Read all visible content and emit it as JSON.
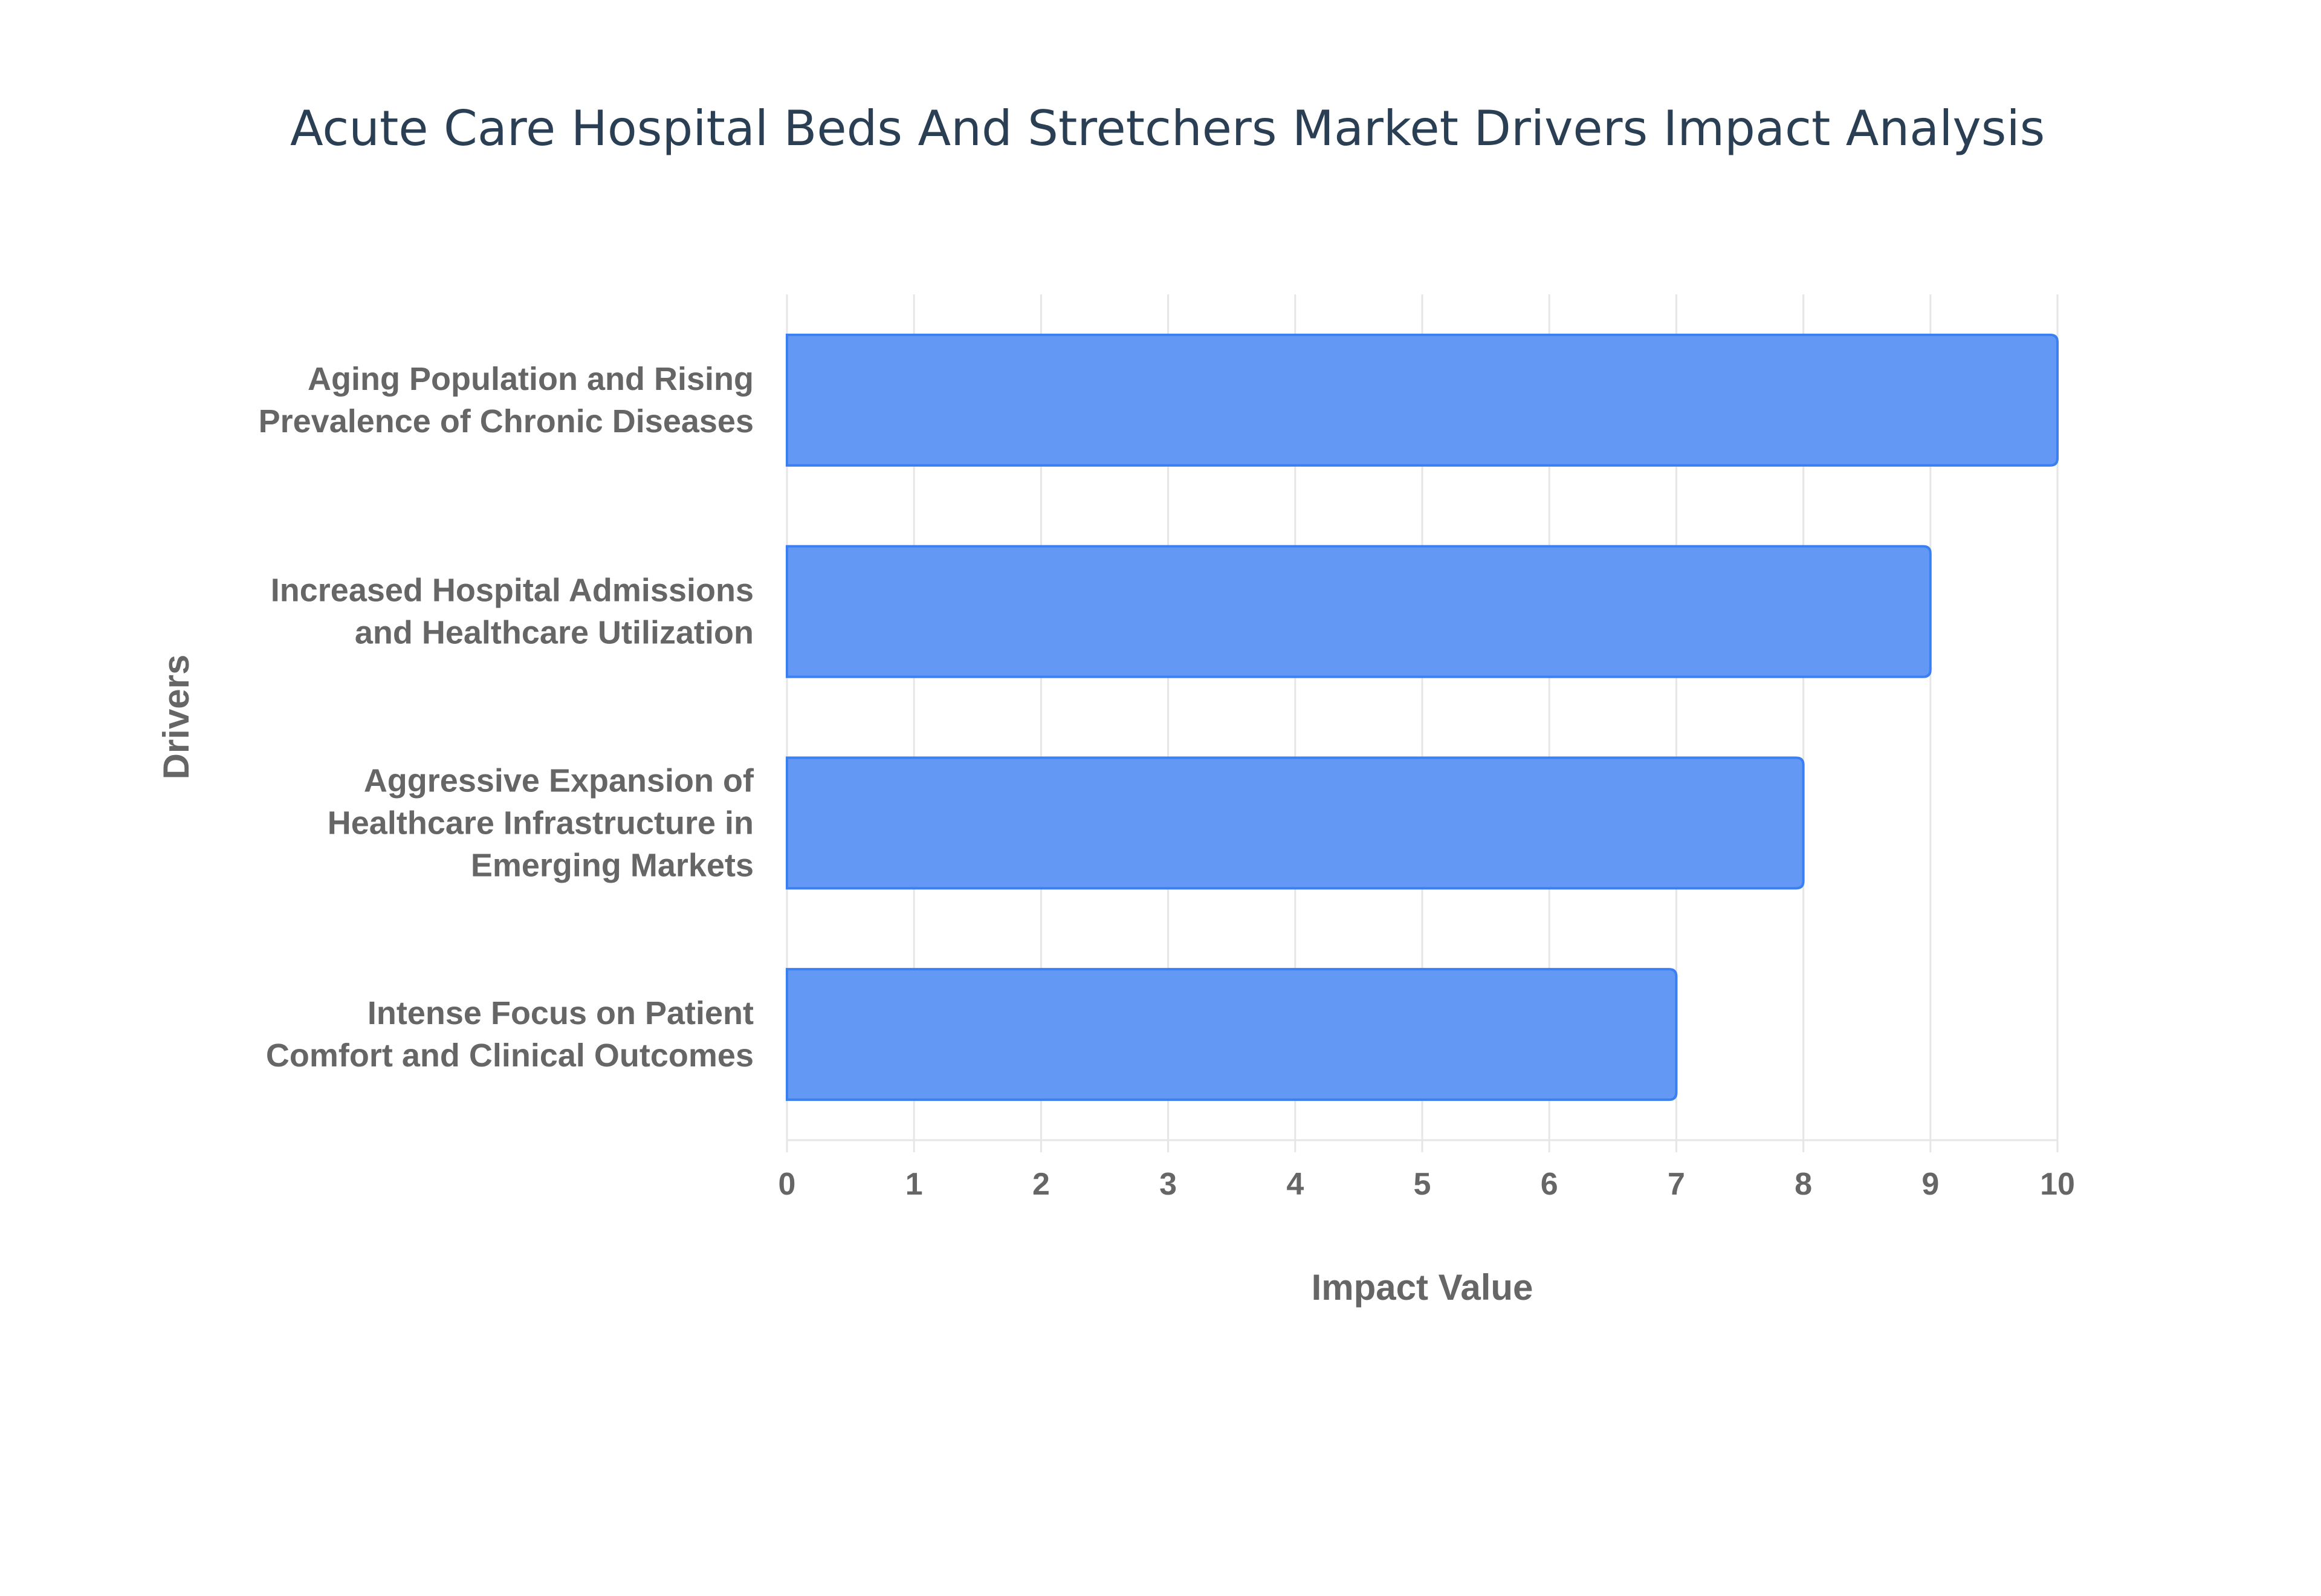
{
  "chart_data": {
    "type": "bar",
    "orientation": "horizontal",
    "title": "Acute Care Hospital Beds And Stretchers Market Drivers Impact Analysis",
    "xlabel": "Impact Value",
    "ylabel": "Drivers",
    "xlim": [
      0,
      10
    ],
    "xticks": [
      "0",
      "1",
      "2",
      "3",
      "4",
      "5",
      "6",
      "7",
      "8",
      "9",
      "10"
    ],
    "grid": true,
    "categories": [
      [
        "Aging Population and Rising",
        "Prevalence of Chronic Diseases"
      ],
      [
        "Increased Hospital Admissions",
        "and Healthcare Utilization"
      ],
      [
        "Aggressive Expansion of",
        "Healthcare Infrastructure in",
        "Emerging Markets"
      ],
      [
        "Intense Focus on Patient",
        "Comfort and Clinical Outcomes"
      ]
    ],
    "values": [
      10,
      9,
      8,
      7
    ],
    "colors": {
      "bar_fill": "#6399f5",
      "bar_stroke": "#3b7ff0",
      "grid": "#e6e6e6",
      "title": "#2a3f54",
      "text": "#666666"
    }
  }
}
